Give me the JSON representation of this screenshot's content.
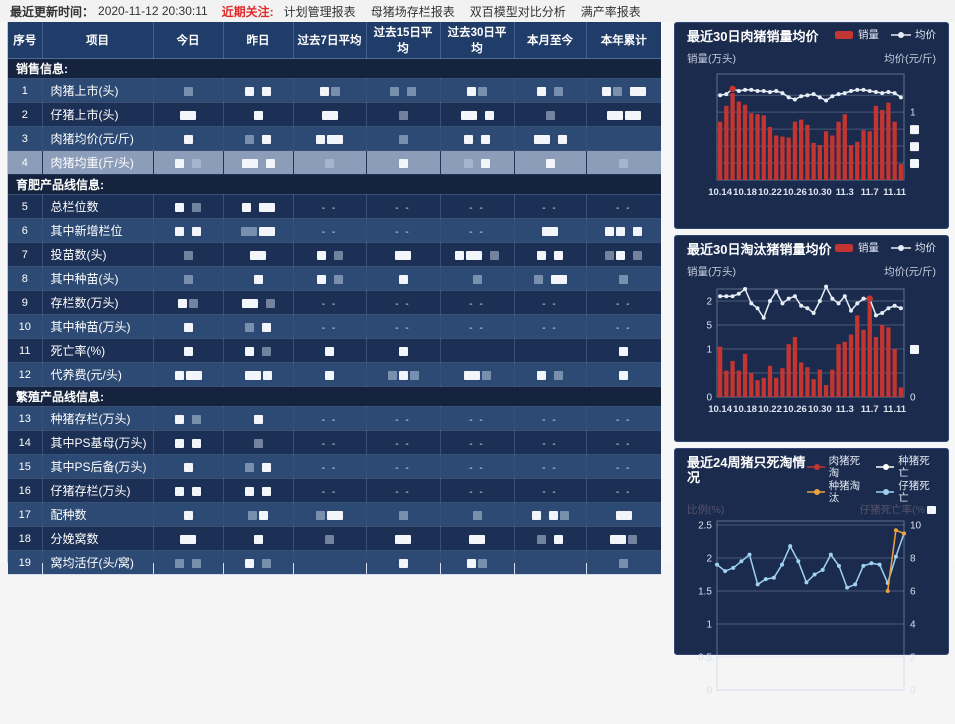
{
  "topbar": {
    "updated_label": "最近更新时间：",
    "updated_time": "2020-11-12 20:30:11",
    "focus_label": "近期关注:",
    "links": [
      "计划管理报表",
      "母猪场存栏报表",
      "双百模型对比分析",
      "满产率报表"
    ]
  },
  "table": {
    "columns": [
      "序号",
      "项目",
      "今日",
      "昨日",
      "过去7日平均",
      "过去15日平均",
      "过去30日平均",
      "本月至今",
      "本年累计"
    ],
    "rows": [
      {
        "type": "section",
        "label": "销售信息:"
      },
      {
        "type": "data",
        "no": "1",
        "label": "肉猪上市(头)",
        "shade": "light",
        "cells": [
          "o",
          "# #",
          "#o",
          "o o",
          "#o",
          "# o",
          "#o ="
        ]
      },
      {
        "type": "data",
        "no": "2",
        "label": "仔猪上市(头)",
        "shade": "dark",
        "cells": [
          "=",
          "#",
          "=",
          "o",
          "= #",
          "o",
          "=="
        ]
      },
      {
        "type": "data",
        "no": "3",
        "label": "肉猪均价(元/斤)",
        "shade": "light",
        "cells": [
          "#",
          "o #",
          "#=",
          "o",
          "# #",
          "= #",
          ""
        ]
      },
      {
        "type": "data",
        "no": "4",
        "label": "肉猪均重(斤/头)",
        "shade": "highlight",
        "cells": [
          "# o",
          "= #",
          "o",
          "#",
          "o #",
          "#",
          "o"
        ]
      },
      {
        "type": "section",
        "label": "育肥产品线信息:"
      },
      {
        "type": "data",
        "no": "5",
        "label": "总栏位数",
        "shade": "dark",
        "cells": [
          "# o",
          "# =",
          "--",
          "--",
          "--",
          "--",
          "--"
        ]
      },
      {
        "type": "data",
        "no": "6",
        "label": "其中新增栏位",
        "shade": "light",
        "cells": [
          "# #",
          "~=",
          "--",
          "--",
          "--",
          "=",
          "## #"
        ]
      },
      {
        "type": "data",
        "no": "7",
        "label": "投苗数(头)",
        "shade": "dark",
        "cells": [
          "o",
          "=",
          "# o",
          "=",
          "#= o",
          "# #",
          "o# o"
        ]
      },
      {
        "type": "data",
        "no": "8",
        "label": "其中种苗(头)",
        "shade": "light",
        "cells": [
          "o",
          "#",
          "# o",
          "#",
          "o",
          "o =",
          "o"
        ]
      },
      {
        "type": "data",
        "no": "9",
        "label": "存栏数(万头)",
        "shade": "dark",
        "cells": [
          "#o",
          "= o",
          "--",
          "--",
          "--",
          "--",
          "--"
        ]
      },
      {
        "type": "data",
        "no": "10",
        "label": "其中种苗(万头)",
        "shade": "light",
        "cells": [
          "#",
          "o #",
          "--",
          "--",
          "--",
          "--",
          "--"
        ]
      },
      {
        "type": "data",
        "no": "11",
        "label": "死亡率(%)",
        "shade": "dark",
        "cells": [
          "#",
          "# o",
          "#",
          "#",
          "",
          "",
          "#"
        ]
      },
      {
        "type": "data",
        "no": "12",
        "label": "代养费(元/头)",
        "shade": "light",
        "cells": [
          "#=",
          "=#",
          "#",
          "o#o",
          "=o",
          "# o",
          "#"
        ]
      },
      {
        "type": "section",
        "label": "繁殖产品线信息:"
      },
      {
        "type": "data",
        "no": "13",
        "label": "种猪存栏(万头)",
        "shade": "light",
        "cells": [
          "# o",
          "#",
          "--",
          "--",
          "--",
          "--",
          "--"
        ]
      },
      {
        "type": "data",
        "no": "14",
        "label": "其中PS基母(万头)",
        "shade": "dark",
        "cells": [
          "# #",
          "o",
          "--",
          "--",
          "--",
          "--",
          "--"
        ]
      },
      {
        "type": "data",
        "no": "15",
        "label": "其中PS后备(万头)",
        "shade": "light",
        "cells": [
          "#",
          "o #",
          "--",
          "--",
          "--",
          "--",
          "--"
        ]
      },
      {
        "type": "data",
        "no": "16",
        "label": "仔猪存栏(万头)",
        "shade": "dark",
        "cells": [
          "# #",
          "# #",
          "--",
          "--",
          "--",
          "--",
          "--"
        ]
      },
      {
        "type": "data",
        "no": "17",
        "label": "配种数",
        "shade": "light",
        "cells": [
          "#",
          "o#",
          "o=",
          "o",
          "o",
          "# #o",
          "="
        ]
      },
      {
        "type": "data",
        "no": "18",
        "label": "分娩窝数",
        "shade": "dark",
        "cells": [
          "=",
          "#",
          "o",
          "=",
          "=",
          "o #",
          "=o"
        ]
      },
      {
        "type": "data",
        "no": "19",
        "label": "窝均活仔(头/窝)",
        "shade": "light",
        "cells": [
          "o o",
          "# o",
          "",
          "#",
          "#o",
          "",
          "o"
        ]
      }
    ],
    "cell_block_legend": {
      "#": "redacted-block-bright",
      "o": "redacted-block-dim",
      "=": "redacted-block-wide",
      "--": "no-data-dashes",
      "": "empty"
    }
  },
  "colors": {
    "accent_red": "#C23531",
    "line_light": "#E6EDF5",
    "orange": "#ECA23E",
    "blue_line": "#9FD2F2",
    "card_bg": "#1B2B4D",
    "row_dark": "#1C2F54",
    "row_light": "#2C4A74",
    "row_highlight": "#8C9DBA",
    "section_bg": "#15233F",
    "header_bg": "#203C68",
    "focus_text_red": "#E02A2A"
  },
  "chart_data": [
    {
      "type": "bar+line",
      "title": "最近30日肉猪销量均价",
      "unit_left": "销量(万头)",
      "unit_right": "均价(元/斤)",
      "legend": [
        {
          "name": "销量",
          "marker": "bar",
          "color": "#C23531"
        },
        {
          "name": "均价",
          "marker": "line",
          "color": "#E6EDF5"
        }
      ],
      "x_labels": [
        "10.14",
        "10.18",
        "10.22",
        "10.26",
        "10.30",
        "11.3",
        "11.7",
        "11.11"
      ],
      "x_label_every": 4,
      "n": 30,
      "ymin": 0,
      "ymax": 1,
      "y_axis_note": "tick values redacted except right-axis 1",
      "grid": [
        {
          "v": 0.16,
          "right": "block"
        },
        {
          "v": 0.32,
          "right": "block"
        },
        {
          "v": 0.48,
          "right": "block"
        },
        {
          "v": 0.64,
          "right": "1"
        },
        {
          "v": 0.8
        },
        {
          "v": 0
        }
      ],
      "bars": {
        "name": "销量",
        "color": "#C23531",
        "values_rel": [
          0.55,
          0.7,
          0.82,
          0.74,
          0.71,
          0.63,
          0.62,
          0.61,
          0.5,
          0.42,
          0.41,
          0.4,
          0.55,
          0.57,
          0.52,
          0.35,
          0.33,
          0.46,
          0.42,
          0.55,
          0.62,
          0.33,
          0.36,
          0.47,
          0.46,
          0.7,
          0.66,
          0.73,
          0.55,
          0.15
        ]
      },
      "lines": [
        {
          "name": "均价",
          "color": "#E6EDF5",
          "values": [
            0.8,
            0.81,
            0.86,
            0.84,
            0.85,
            0.85,
            0.84,
            0.84,
            0.83,
            0.84,
            0.82,
            0.78,
            0.76,
            0.79,
            0.8,
            0.81,
            0.78,
            0.75,
            0.79,
            0.81,
            0.82,
            0.84,
            0.85,
            0.85,
            0.84,
            0.83,
            0.82,
            0.83,
            0.82,
            0.78
          ],
          "highlight": 2,
          "highlight_color": "#C23531"
        }
      ]
    },
    {
      "type": "bar+line",
      "title": "最近30日淘汰猪销量均价",
      "unit_left": "销量(万头)",
      "unit_right": "均价(元/斤)",
      "legend": [
        {
          "name": "销量",
          "marker": "bar",
          "color": "#C23531"
        },
        {
          "name": "均价",
          "marker": "line",
          "color": "#E6EDF5"
        }
      ],
      "x_labels": [
        "10.14",
        "10.18",
        "10.22",
        "10.26",
        "10.30",
        "11.3",
        "11.7",
        "11.11"
      ],
      "x_label_every": 4,
      "n": 30,
      "ymin": 0,
      "ymax": 2.25,
      "grid": [
        {
          "v": 0.5
        },
        {
          "v": 1,
          "left": "1",
          "right": "block"
        },
        {
          "v": 1.5,
          "left": "5"
        },
        {
          "v": 2,
          "left": "2"
        },
        {
          "v": 0,
          "left": "0",
          "right": "0"
        }
      ],
      "bars": {
        "name": "销量",
        "color": "#C23531",
        "values": [
          1.05,
          0.55,
          0.75,
          0.55,
          0.9,
          0.5,
          0.35,
          0.4,
          0.65,
          0.4,
          0.6,
          1.1,
          1.25,
          0.72,
          0.62,
          0.37,
          0.57,
          0.25,
          0.57,
          1.1,
          1.15,
          1.3,
          1.7,
          1.4,
          2.05,
          1.25,
          1.5,
          1.45,
          1.0,
          0.2
        ]
      },
      "lines": [
        {
          "name": "均价",
          "color": "#E6EDF5",
          "values": [
            2.1,
            2.1,
            2.1,
            2.15,
            2.25,
            1.95,
            1.85,
            1.65,
            2.0,
            2.2,
            1.95,
            2.05,
            2.1,
            1.9,
            1.85,
            1.75,
            2.0,
            2.3,
            2.05,
            1.95,
            2.1,
            1.8,
            1.95,
            2.05,
            2.05,
            1.7,
            1.75,
            1.85,
            1.9,
            1.85
          ],
          "highlight": 24,
          "highlight_color": "#C23531"
        }
      ]
    },
    {
      "type": "line",
      "title": "最近24周猪只死淘情况",
      "unit_left": "比例(%)",
      "unit_right": "仔猪死亡率(%",
      "units_dim": true,
      "legend": [
        {
          "name": "肉猪死淘",
          "marker": "line",
          "color": "#C23531"
        },
        {
          "name": "种猪死亡",
          "marker": "line",
          "color": "#FFFFFF"
        },
        {
          "name": "种猪淘汰",
          "marker": "line",
          "color": "#ECA23E"
        },
        {
          "name": "仔猪死亡",
          "marker": "line",
          "color": "#9FD2F2"
        }
      ],
      "n": 24,
      "ymin": 0,
      "ymax": 2.56,
      "grid": [
        {
          "v": 2.5,
          "left": "2.5",
          "right": "10"
        },
        {
          "v": 2,
          "left": "2",
          "right": "8"
        },
        {
          "v": 1.5,
          "left": "1.5",
          "right": "6"
        },
        {
          "v": 1,
          "left": "1",
          "right": "4"
        },
        {
          "v": 0.5,
          "left": "0.5",
          "right": "2"
        },
        {
          "v": 0,
          "left": "0",
          "right": "0"
        }
      ],
      "lines": [
        {
          "name": "仔猪死亡",
          "color": "#9FD2F2",
          "values": [
            1.9,
            1.8,
            1.85,
            1.95,
            2.05,
            1.6,
            1.68,
            1.7,
            1.9,
            2.18,
            1.95,
            1.63,
            1.75,
            1.82,
            2.05,
            1.88,
            1.55,
            1.6,
            1.88,
            1.92,
            1.9,
            1.62,
            2.02,
            2.37
          ]
        },
        {
          "name": "种猪淘汰",
          "color": "#ECA23E",
          "values": [
            null,
            null,
            null,
            null,
            null,
            null,
            null,
            null,
            null,
            null,
            null,
            null,
            null,
            null,
            null,
            null,
            null,
            null,
            null,
            null,
            null,
            1.5,
            2.42,
            2.37
          ]
        },
        {
          "name": "肉猪死淘",
          "color": "#C23531",
          "values": []
        },
        {
          "name": "种猪死亡",
          "color": "#FFFFFF",
          "values": []
        }
      ]
    }
  ]
}
